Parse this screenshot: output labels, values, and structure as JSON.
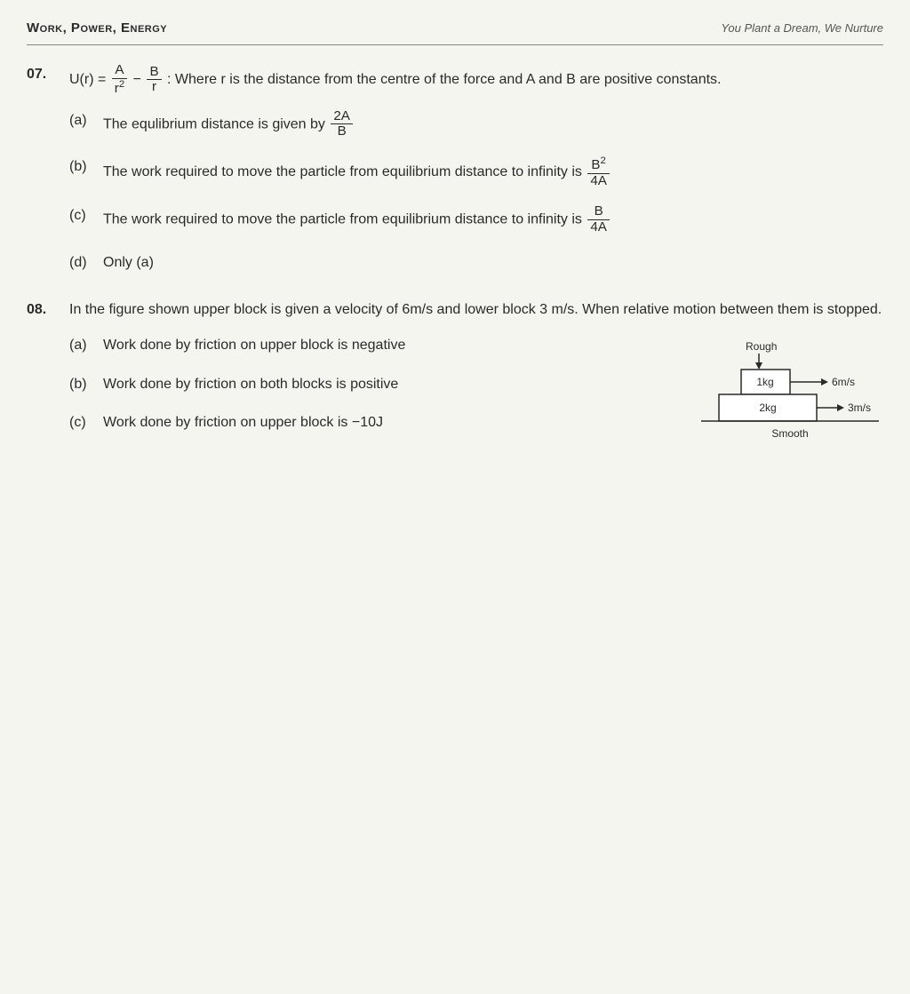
{
  "header": {
    "section_title": "Work, Power, Energy",
    "tagline": "You Plant a Dream, We Nurture"
  },
  "q07": {
    "number": "07.",
    "stem_prefix": "U(r) = ",
    "frac1_num": "A",
    "frac1_den": "r",
    "frac1_den_sup": "2",
    "minus": " − ",
    "frac2_num": "B",
    "frac2_den": "r",
    "stem_suffix": " : Where r is the distance from the centre of the force and A and B are positive constants.",
    "options": {
      "a": {
        "label": "(a)",
        "text_pre": "The equlibrium distance is given by ",
        "frac_num": "2A",
        "frac_den": "B"
      },
      "b": {
        "label": "(b)",
        "text_pre": "The work required to move the particle from equilibrium distance to infinity is ",
        "frac_num": "B",
        "frac_num_sup": "2",
        "frac_den": "4A"
      },
      "c": {
        "label": "(c)",
        "text_pre": "The work required to move the particle from equilibrium distance to infinity is ",
        "frac_num": "B",
        "frac_den": "4A"
      },
      "d": {
        "label": "(d)",
        "text": "Only (a)"
      }
    }
  },
  "q08": {
    "number": "08.",
    "stem": "In the figure shown upper block is given a velocity of 6m/s and lower block 3 m/s. When relative motion between them is stopped.",
    "options": {
      "a": {
        "label": "(a)",
        "text": "Work done by friction on upper block is negative"
      },
      "b": {
        "label": "(b)",
        "text": "Work done by friction on both blocks is positive"
      },
      "c": {
        "label": "(c)",
        "text": "Work done by friction on upper block is −10J"
      }
    },
    "diagram": {
      "rough_label": "Rough",
      "smooth_label": "Smooth",
      "block1_label": "1kg",
      "block1_vel": "6m/s",
      "block2_label": "2kg",
      "block2_vel": "3m/s",
      "colors": {
        "stroke": "#2a2a2a",
        "fill": "#ffffff",
        "text": "#2a2a2a"
      },
      "font_size": 12,
      "line_width": 1.5
    }
  }
}
